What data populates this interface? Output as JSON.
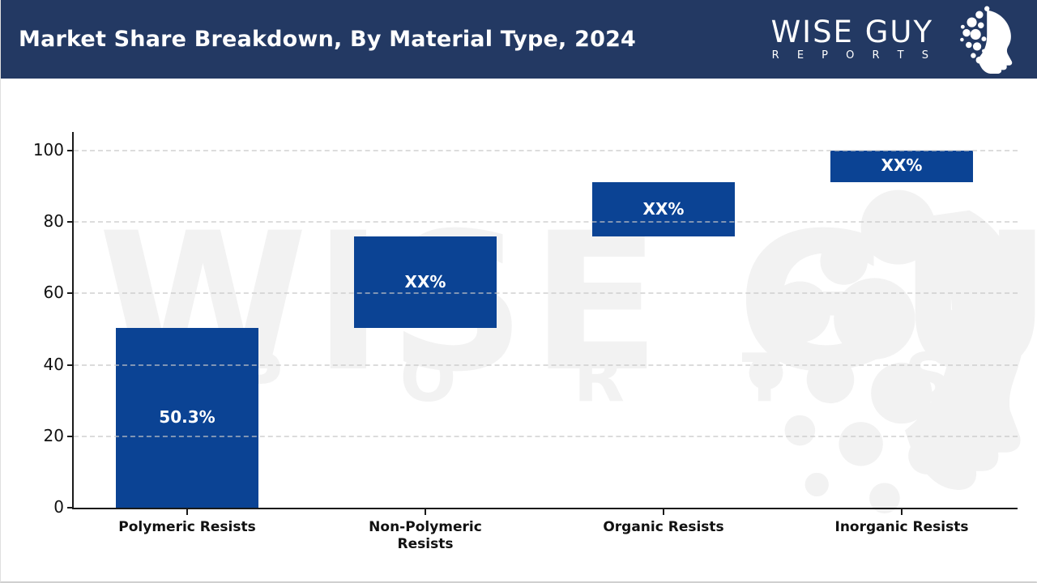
{
  "header": {
    "title": "Market Share Breakdown, By Material Type, 2024",
    "bg_color": "#233963",
    "logo": {
      "line1": "WISE GUY",
      "line2": "R E P O R T S"
    }
  },
  "watermark": {
    "line1": "WISE GU",
    "line2": "P O R T S"
  },
  "chart_data": {
    "type": "bar",
    "subtype": "waterfall",
    "title": "Market Share Breakdown, By Material Type, 2024",
    "categories": [
      "Polymeric Resists",
      "Non-Polymeric Resists",
      "Organic Resists",
      "Inorganic Resists"
    ],
    "segments": [
      {
        "category": "Polymeric Resists",
        "label": "50.3%",
        "start": 0,
        "end": 50.3
      },
      {
        "category": "Non-Polymeric Resists",
        "label": "XX%",
        "start": 50.3,
        "end": 75.9
      },
      {
        "category": "Organic Resists",
        "label": "XX%",
        "start": 75.9,
        "end": 91.2
      },
      {
        "category": "Inorganic Resists",
        "label": "XX%",
        "start": 91.2,
        "end": 100
      }
    ],
    "yticks": [
      0,
      20,
      40,
      60,
      80,
      100
    ],
    "ylim": [
      0,
      107
    ],
    "grid": true,
    "grid_style": "dashed",
    "legend": "none",
    "bar_color": "#0b4394",
    "bar_label_color": "#ffffff",
    "axis_color": "#1a1a1a",
    "xlabel": "",
    "ylabel": ""
  }
}
